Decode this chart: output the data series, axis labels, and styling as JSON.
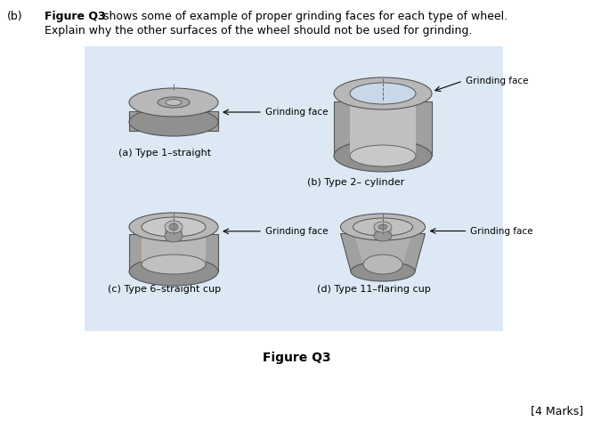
{
  "bg_color": "#ffffff",
  "panel_bg": "#dce9f5",
  "wheel_gray_main": "#b8b8b8",
  "wheel_gray_dark": "#909090",
  "wheel_gray_light": "#d8d8d8",
  "wheel_gray_side": "#a0a0a0",
  "wheel_inner_bg": "#c8d8e8",
  "title_text": "Figure Q3",
  "marks_text": "[4 Marks]",
  "header_b": "(b)",
  "header_bold": "Figure Q3",
  "header_line1_rest": " shows some of example of proper grinding faces for each type of wheel.",
  "header_line2": "Explain why the other surfaces of the wheel should not be used for grinding.",
  "labels": [
    "(a) Type 1–straight",
    "(b) Type 2– cylinder",
    "(c) Type 6–straight cup",
    "(d) Type 11–flaring cup"
  ],
  "grinding_face_label": "Grinding face",
  "figsize": [
    6.66,
    4.73
  ],
  "dpi": 100
}
